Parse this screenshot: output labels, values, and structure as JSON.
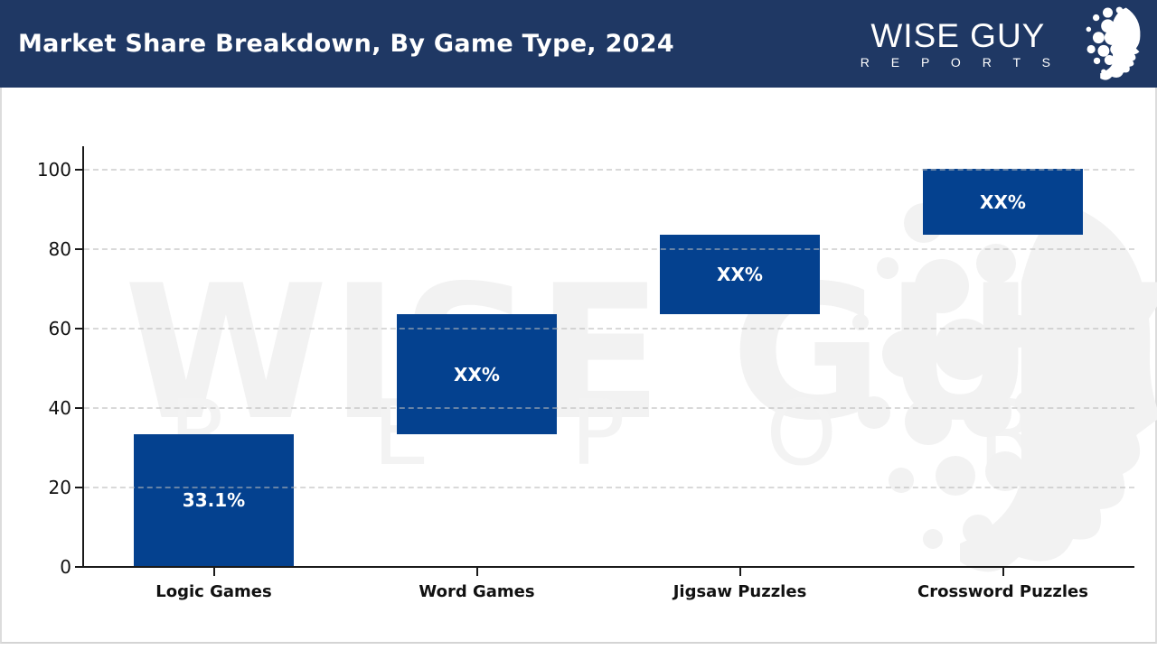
{
  "header": {
    "bg_color": "#1f3864",
    "title": "Market Share Breakdown, By Game Type, 2024",
    "logo": {
      "name_line": "WISE GUY",
      "sub_line": "R E P O R T S"
    }
  },
  "watermark": {
    "name_line": "WISE GUY",
    "sub_line": "R E P O R T S"
  },
  "chart_data": {
    "type": "bar",
    "variant": "waterfall",
    "title": "Market Share Breakdown, By Game Type, 2024",
    "categories": [
      "Logic Games",
      "Word Games",
      "Jigsaw Puzzles",
      "Crossword Puzzles"
    ],
    "segments": [
      {
        "category": "Logic Games",
        "start": 0,
        "end": 33.1,
        "value": 33.1,
        "label": "33.1%"
      },
      {
        "category": "Word Games",
        "start": 33.1,
        "end": 63.4,
        "value": 30.3,
        "label": "XX%"
      },
      {
        "category": "Jigsaw Puzzles",
        "start": 63.4,
        "end": 83.4,
        "value": 20.0,
        "label": "XX%"
      },
      {
        "category": "Crossword Puzzles",
        "start": 83.4,
        "end": 100,
        "value": 16.6,
        "label": "XX%"
      }
    ],
    "xlabel": "",
    "ylabel": "",
    "ylim": [
      0,
      105.5
    ],
    "yticks": [
      0,
      20,
      40,
      60,
      80,
      100
    ],
    "grid": "horizontal-dashed",
    "legend": "none",
    "bar_color": "#04418f",
    "bar_label_color": "#ffffff",
    "axis_color": "#1a1a1a"
  }
}
